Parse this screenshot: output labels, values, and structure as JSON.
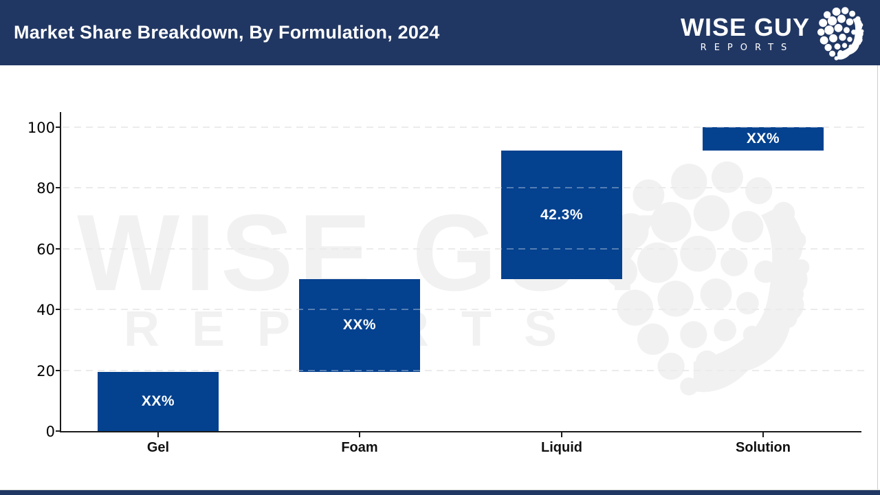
{
  "header": {
    "title": "Market Share Breakdown, By Formulation, 2024",
    "logo": {
      "line1": "WISE GUY",
      "line2": "REPORTS"
    }
  },
  "watermark": {
    "line1": "WISE GUY",
    "line2": "REPORTS"
  },
  "colors": {
    "header_navy": "#213763",
    "bar_blue": "#04418F",
    "gridline_gray": "#e2e2e2",
    "watermark_gray": "#f1f1f1",
    "axis_black": "#1a1a1a"
  },
  "icons": {
    "brand_head": "dotted-head-profile-icon"
  },
  "chart_data": {
    "type": "bar",
    "variant": "waterfall",
    "title": "Market Share Breakdown, By Formulation, 2024",
    "categories": [
      "Gel",
      "Foam",
      "Liquid",
      "Solution"
    ],
    "segments": [
      {
        "category": "Gel",
        "start": 0,
        "end": 19.5,
        "label": "XX%"
      },
      {
        "category": "Foam",
        "start": 19.5,
        "end": 50,
        "label": "XX%"
      },
      {
        "category": "Liquid",
        "start": 50,
        "end": 92.3,
        "label": "42.3%"
      },
      {
        "category": "Solution",
        "start": 92.3,
        "end": 100,
        "label": "XX%"
      }
    ],
    "xlabel": "",
    "ylabel": "",
    "yticks": [
      0,
      20,
      40,
      60,
      80,
      100
    ],
    "ylim": [
      0,
      105
    ],
    "grid": {
      "horizontal": true,
      "style": "dashed",
      "drawn_over_bars": true
    },
    "legend": "none",
    "bar_color": "#04418F",
    "bar_label_color": "#ffffff"
  }
}
